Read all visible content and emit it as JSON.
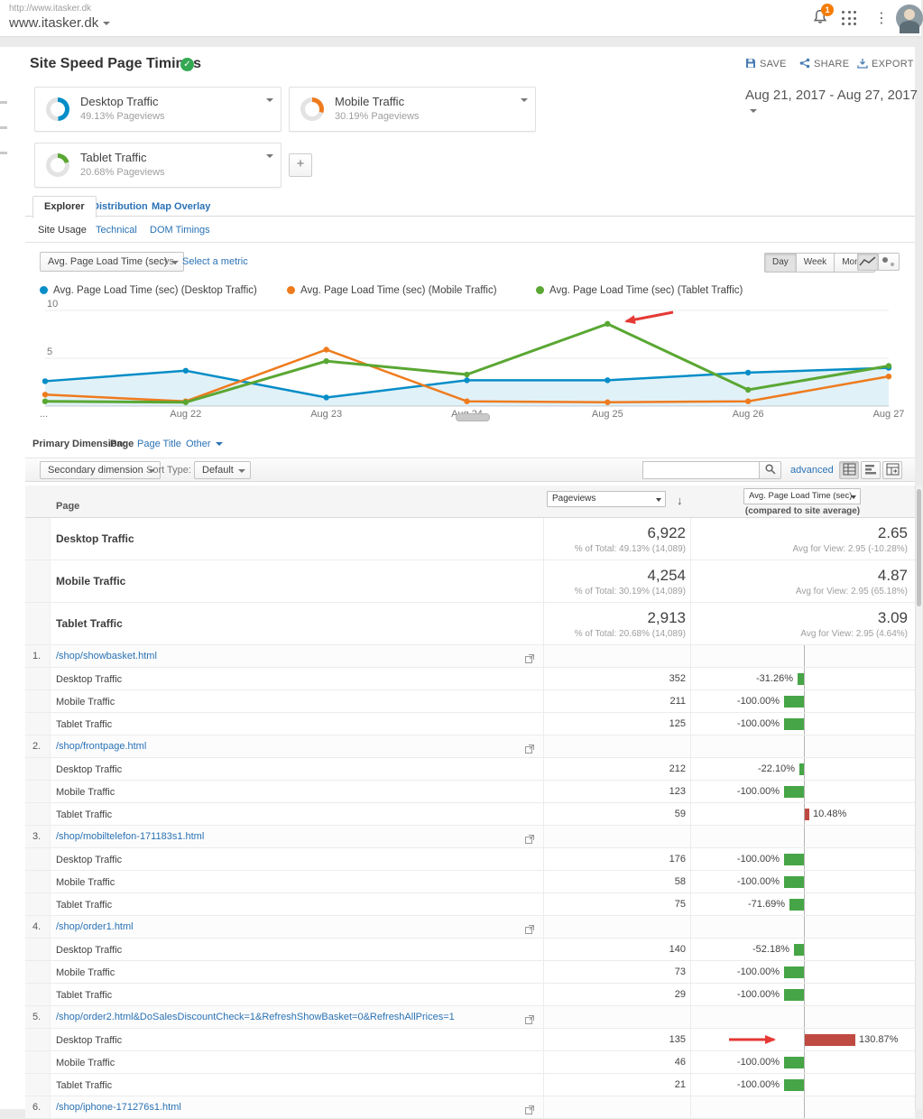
{
  "topbar": {
    "url": "http://www.itasker.dk",
    "property_name": "www.itasker.dk",
    "notification_count": "1"
  },
  "page": {
    "title": "Site Speed Page Timings"
  },
  "actions": {
    "save": "SAVE",
    "share": "SHARE",
    "export": "EXPORT"
  },
  "date_range": "Aug 21, 2017 - Aug 27, 2017",
  "segments": [
    {
      "name": "Desktop Traffic",
      "detail": "49.13% Pageviews",
      "percent": 49.13,
      "color": "#058dc7"
    },
    {
      "name": "Mobile Traffic",
      "detail": "30.19% Pageviews",
      "percent": 30.19,
      "color": "#ee7b1e"
    },
    {
      "name": "Tablet Traffic",
      "detail": "20.68% Pageviews",
      "percent": 20.68,
      "color": "#5aa733"
    }
  ],
  "tabs": [
    {
      "label": "Explorer",
      "active": true
    },
    {
      "label": "Distribution"
    },
    {
      "label": "Map Overlay"
    }
  ],
  "subtabs": [
    {
      "label": "Site Usage",
      "active": true
    },
    {
      "label": "Technical"
    },
    {
      "label": "DOM Timings"
    }
  ],
  "metric_bar": {
    "metric_select": "Avg. Page Load Time (sec)",
    "vs_label": "vs.",
    "select_metric": "Select a metric",
    "granularity": [
      "Day",
      "Week",
      "Month"
    ],
    "granularity_active": "Day"
  },
  "chart_data": {
    "type": "line",
    "x_labels": [
      "...",
      "Aug 22",
      "Aug 23",
      "Aug 24",
      "Aug 25",
      "Aug 26",
      "Aug 27"
    ],
    "ylim": [
      0,
      10
    ],
    "yticks": [
      5,
      10
    ],
    "grid": true,
    "legend_position": "top",
    "series": [
      {
        "name": "Avg. Page Load Time (sec) (Desktop Traffic)",
        "color": "#058dc7",
        "fill": true,
        "values": [
          2.6,
          3.7,
          0.9,
          2.7,
          2.7,
          3.5,
          4.0
        ]
      },
      {
        "name": "Avg. Page Load Time (sec) (Mobile Traffic)",
        "color": "#ee7b1e",
        "fill": false,
        "values": [
          1.2,
          0.5,
          5.9,
          0.5,
          0.4,
          0.5,
          3.1
        ]
      },
      {
        "name": "Avg. Page Load Time (sec) (Tablet Traffic)",
        "color": "#5aa733",
        "fill": false,
        "values": [
          0.5,
          0.4,
          4.7,
          3.3,
          8.6,
          1.7,
          4.2
        ]
      }
    ],
    "annotation": "red arrow pointing at Tablet Traffic peak on Aug 25"
  },
  "dimension_bar": {
    "label": "Primary Dimension:",
    "options": [
      {
        "label": "Page",
        "active": true
      },
      {
        "label": "Page Title"
      },
      {
        "label": "Other"
      }
    ]
  },
  "table_toolbar": {
    "secondary_dimension": "Secondary dimension",
    "sort_type_label": "Sort Type:",
    "sort_type_value": "Default",
    "search_value": "",
    "advanced": "advanced"
  },
  "table": {
    "columns": {
      "page": "Page",
      "pageviews": "Pageviews",
      "metric": "Avg. Page Load Time (sec)",
      "metric_sub": "(compared to site average)"
    },
    "totals": [
      {
        "name": "Desktop Traffic",
        "pageviews": "6,922",
        "pageviews_sub": "% of Total: 49.13% (14,089)",
        "value": "2.65",
        "value_sub": "Avg for View: 2.95 (-10.28%)"
      },
      {
        "name": "Mobile Traffic",
        "pageviews": "4,254",
        "pageviews_sub": "% of Total: 30.19% (14,089)",
        "value": "4.87",
        "value_sub": "Avg for View: 2.95 (65.18%)"
      },
      {
        "name": "Tablet Traffic",
        "pageviews": "2,913",
        "pageviews_sub": "% of Total: 20.68% (14,089)",
        "value": "3.09",
        "value_sub": "Avg for View: 2.95 (4.64%)"
      }
    ],
    "rows": [
      {
        "index": "1.",
        "page": "/shop/showbasket.html",
        "segments": [
          {
            "name": "Desktop Traffic",
            "pageviews": "352",
            "delta": "-31.26%",
            "delta_value": -31.26
          },
          {
            "name": "Mobile Traffic",
            "pageviews": "211",
            "delta": "-100.00%",
            "delta_value": -100
          },
          {
            "name": "Tablet Traffic",
            "pageviews": "125",
            "delta": "-100.00%",
            "delta_value": -100
          }
        ]
      },
      {
        "index": "2.",
        "page": "/shop/frontpage.html",
        "segments": [
          {
            "name": "Desktop Traffic",
            "pageviews": "212",
            "delta": "-22.10%",
            "delta_value": -22.1
          },
          {
            "name": "Mobile Traffic",
            "pageviews": "123",
            "delta": "-100.00%",
            "delta_value": -100
          },
          {
            "name": "Tablet Traffic",
            "pageviews": "59",
            "delta": "10.48%",
            "delta_value": 10.48
          }
        ]
      },
      {
        "index": "3.",
        "page": "/shop/mobiltelefon-171183s1.html",
        "segments": [
          {
            "name": "Desktop Traffic",
            "pageviews": "176",
            "delta": "-100.00%",
            "delta_value": -100
          },
          {
            "name": "Mobile Traffic",
            "pageviews": "58",
            "delta": "-100.00%",
            "delta_value": -100
          },
          {
            "name": "Tablet Traffic",
            "pageviews": "75",
            "delta": "-71.69%",
            "delta_value": -71.69
          }
        ]
      },
      {
        "index": "4.",
        "page": "/shop/order1.html",
        "segments": [
          {
            "name": "Desktop Traffic",
            "pageviews": "140",
            "delta": "-52.18%",
            "delta_value": -52.18
          },
          {
            "name": "Mobile Traffic",
            "pageviews": "73",
            "delta": "-100.00%",
            "delta_value": -100
          },
          {
            "name": "Tablet Traffic",
            "pageviews": "29",
            "delta": "-100.00%",
            "delta_value": -100
          }
        ]
      },
      {
        "index": "5.",
        "page": "/shop/order2.html&DoSalesDiscountCheck=1&RefreshShowBasket=0&RefreshAllPrices=1",
        "segments": [
          {
            "name": "Desktop Traffic",
            "pageviews": "135",
            "delta": "130.87%",
            "delta_value": 130.87,
            "arrow": true
          },
          {
            "name": "Mobile Traffic",
            "pageviews": "46",
            "delta": "-100.00%",
            "delta_value": -100
          },
          {
            "name": "Tablet Traffic",
            "pageviews": "21",
            "delta": "-100.00%",
            "delta_value": -100
          }
        ]
      },
      {
        "index": "6.",
        "page": "/shop/iphone-171276s1.html",
        "segments": []
      }
    ]
  },
  "colors": {
    "positive_bar": "#bf4a41",
    "negative_bar": "#46a546",
    "link": "#2a72b5",
    "annotation": "#e53935",
    "badge": "#f57c00"
  }
}
